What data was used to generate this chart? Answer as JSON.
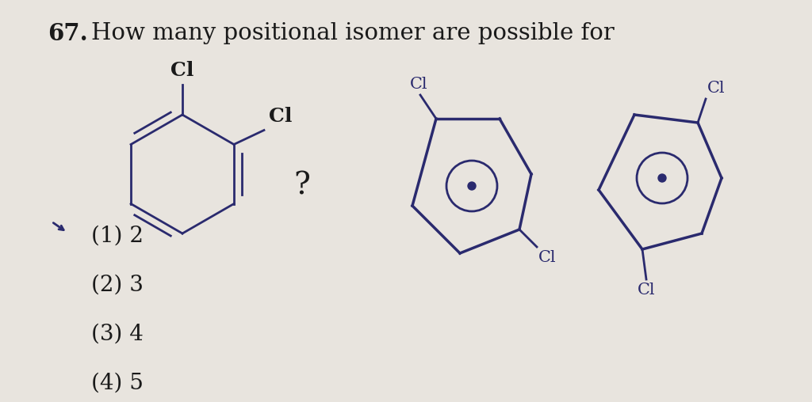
{
  "background_color": "#e8e4de",
  "text_color": "#1a1a1a",
  "mol_color": "#2a2a6e",
  "question_number": "67.",
  "question_text": "How many positional isomer are possible for",
  "question_fontsize": 21,
  "options": [
    "(1) 2",
    "(2) 3",
    "(3) 4",
    "(4) 5"
  ],
  "options_fontsize": 20,
  "fig_width": 10.24,
  "fig_height": 5.08
}
